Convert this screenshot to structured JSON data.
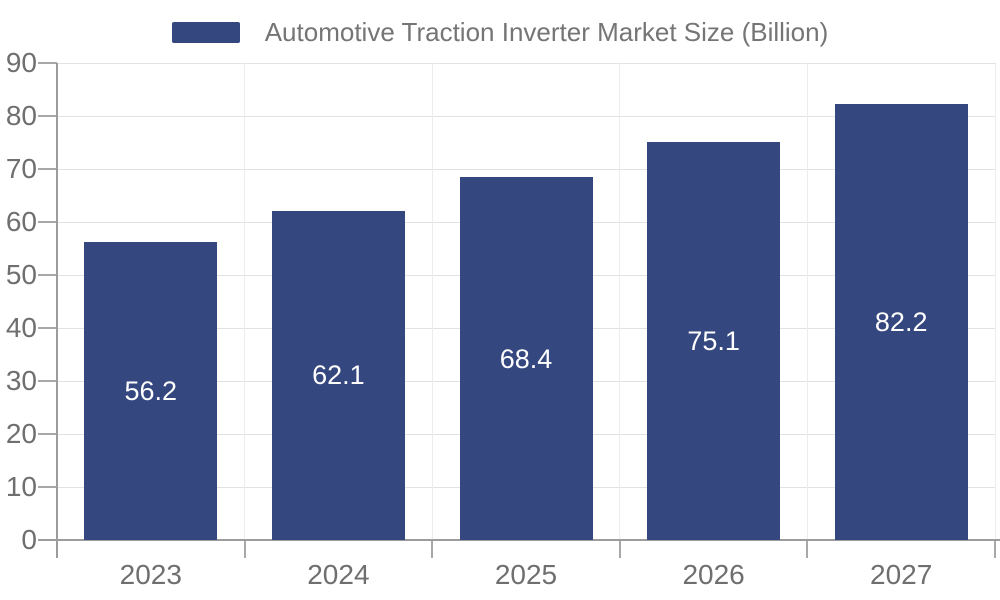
{
  "chart_data": {
    "type": "bar",
    "title": "Automotive Traction Inverter Market Size (Billion)",
    "legend": {
      "label": "Automotive Traction Inverter Market Size (Billion)",
      "position": "top"
    },
    "categories": [
      "2023",
      "2024",
      "2025",
      "2026",
      "2027"
    ],
    "series": [
      {
        "name": "Automotive Traction Inverter Market Size (Billion)",
        "values": [
          56.2,
          62.1,
          68.4,
          75.1,
          82.2
        ]
      }
    ],
    "value_labels": [
      "56.2",
      "62.1",
      "68.4",
      "75.1",
      "82.2"
    ],
    "ylim": [
      0,
      90
    ],
    "yticks": [
      0,
      10,
      20,
      30,
      40,
      50,
      60,
      70,
      80,
      90
    ],
    "grid": true,
    "colors": {
      "bar": "#35477f",
      "value_label": "#ffffff",
      "title_text": "#757575",
      "axis_label": "#6f6f6f",
      "axis_line": "#9c9c9c",
      "tick_line": "#a8a8a8",
      "h_gridline": "#e2e2e2",
      "v_gridline": "#ececec",
      "background": "#ffffff"
    }
  }
}
